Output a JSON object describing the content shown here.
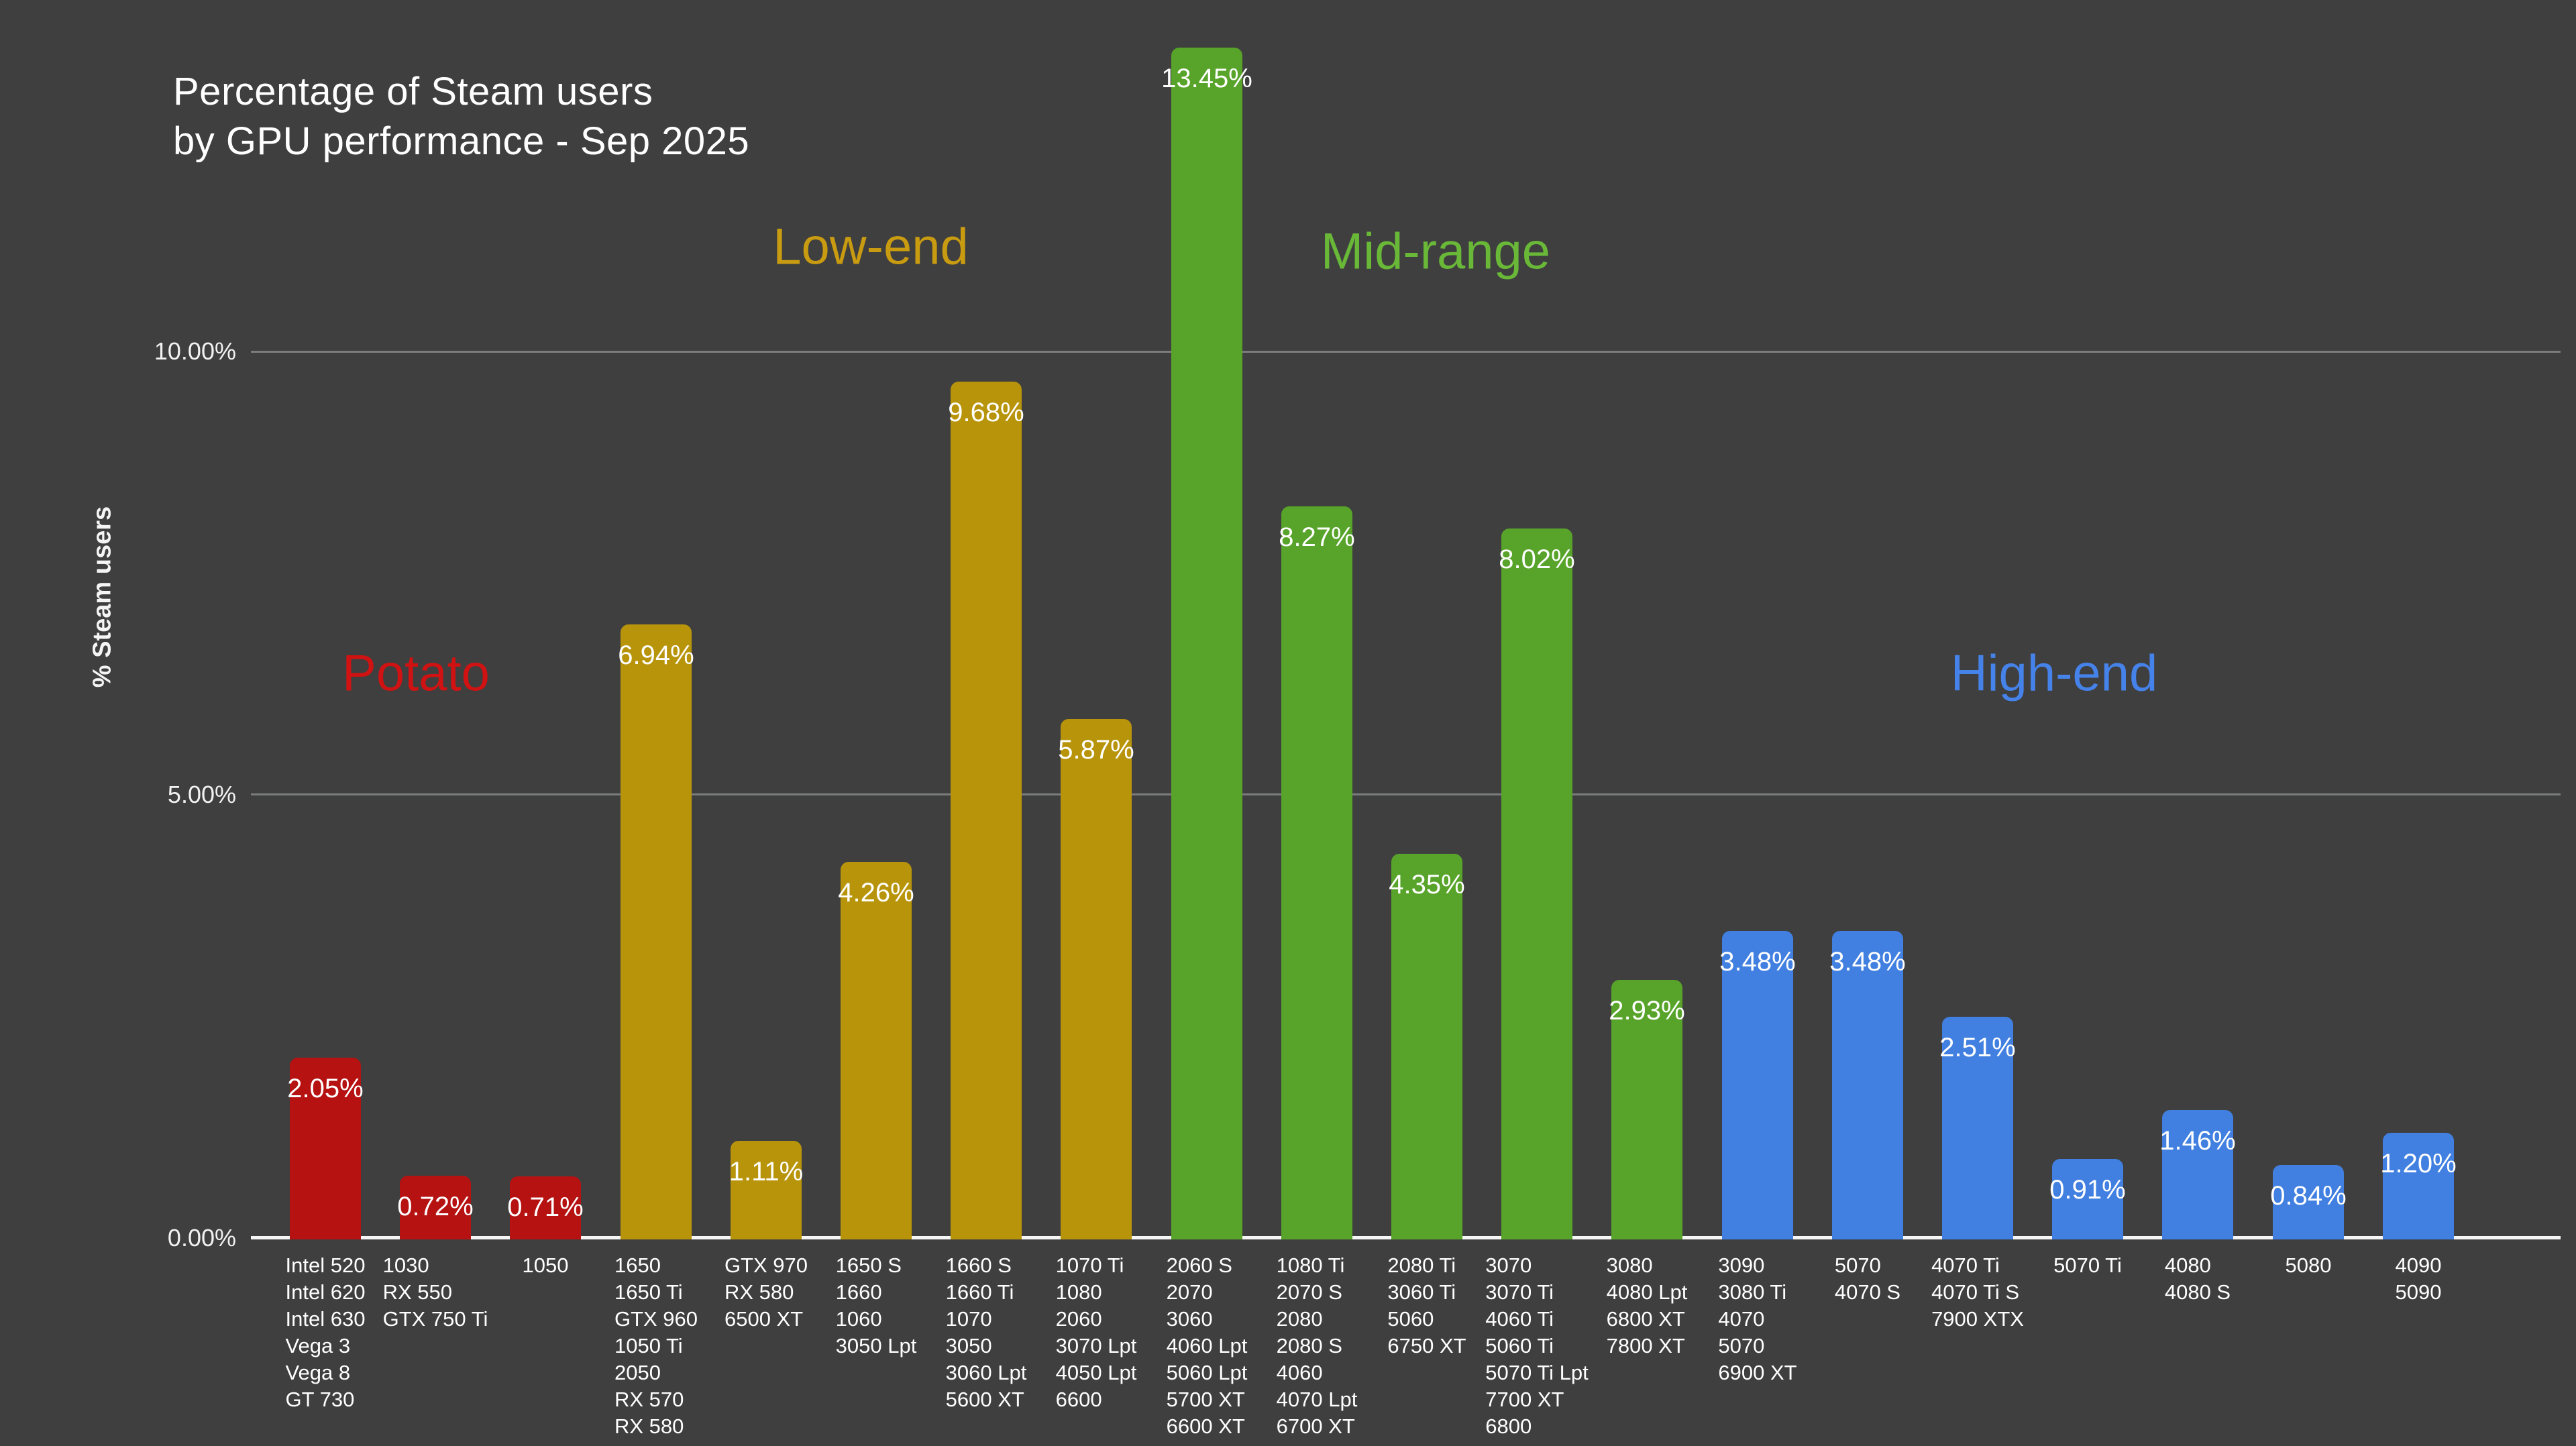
{
  "header": {
    "title_line1": "Percentage of Steam users",
    "title_line2": "by GPU performance - Sep 2025"
  },
  "chart_data": {
    "type": "bar",
    "title": "Percentage of Steam users by GPU performance - Sep 2025",
    "xlabel": "",
    "ylabel": "% Steam users",
    "ylim": [
      0,
      13.45
    ],
    "grid": "horizontal",
    "legend": "none",
    "value_suffix": "%",
    "yticks": [
      {
        "value": 0,
        "label": "0.00%"
      },
      {
        "value": 5,
        "label": "5.00%"
      },
      {
        "value": 10,
        "label": "10.00%"
      }
    ],
    "colors": {
      "background": "#3f3f3f",
      "text": "#ffffff",
      "gridline": "#7a7c7e",
      "baseline": "#f5f5f5"
    },
    "tiers": [
      {
        "id": "potato",
        "name": "Potato",
        "bar_color": "#b61212",
        "label_color": "#d11212",
        "annotation": {
          "x": 620,
          "y": 1004
        }
      },
      {
        "id": "low",
        "name": "Low-end",
        "bar_color": "#b8940b",
        "label_color": "#c99b10",
        "annotation": {
          "x": 1298,
          "y": 368
        }
      },
      {
        "id": "mid",
        "name": "Mid-range",
        "bar_color": "#58a42a",
        "label_color": "#69b838",
        "annotation": {
          "x": 2140,
          "y": 375
        }
      },
      {
        "id": "high",
        "name": "High-end",
        "bar_color": "#4180e0",
        "label_color": "#4583ea",
        "annotation": {
          "x": 3062,
          "y": 1004
        }
      }
    ],
    "bars": [
      {
        "tier": "potato",
        "value": 2.05,
        "label": "2.05%",
        "gpus": [
          "Intel 520",
          "Intel 620",
          "Intel 630",
          "Vega 3",
          "Vega 8",
          "GT 730"
        ]
      },
      {
        "tier": "potato",
        "value": 0.72,
        "label": "0.72%",
        "gpus": [
          "1030",
          "RX 550",
          "GTX 750 Ti"
        ]
      },
      {
        "tier": "potato",
        "value": 0.71,
        "label": "0.71%",
        "gpus": [
          "1050"
        ]
      },
      {
        "tier": "low",
        "value": 6.94,
        "label": "6.94%",
        "gpus": [
          "1650",
          "1650 Ti",
          "GTX 960",
          "1050 Ti",
          "2050",
          "RX 570",
          "RX 580"
        ]
      },
      {
        "tier": "low",
        "value": 1.11,
        "label": "1.11%",
        "gpus": [
          "GTX 970",
          "RX 580",
          "6500 XT"
        ]
      },
      {
        "tier": "low",
        "value": 4.26,
        "label": "4.26%",
        "gpus": [
          "1650 S",
          "1660",
          "1060",
          "3050 Lpt"
        ]
      },
      {
        "tier": "low",
        "value": 9.68,
        "label": "9.68%",
        "gpus": [
          "1660 S",
          "1660 Ti",
          "1070",
          "3050",
          "3060 Lpt",
          "5600 XT"
        ]
      },
      {
        "tier": "low",
        "value": 5.87,
        "label": "5.87%",
        "gpus": [
          "1070 Ti",
          "1080",
          "2060",
          "3070 Lpt",
          "4050 Lpt",
          "6600"
        ]
      },
      {
        "tier": "mid",
        "value": 13.45,
        "label": "13.45%",
        "gpus": [
          "2060 S",
          "2070",
          "3060",
          "4060 Lpt",
          "5060 Lpt",
          "5700 XT",
          "6600 XT"
        ]
      },
      {
        "tier": "mid",
        "value": 8.27,
        "label": "8.27%",
        "gpus": [
          "1080 Ti",
          "2070 S",
          "2080",
          "2080 S",
          "4060",
          "4070 Lpt",
          "6700 XT"
        ]
      },
      {
        "tier": "mid",
        "value": 4.35,
        "label": "4.35%",
        "gpus": [
          "2080 Ti",
          "3060 Ti",
          "5060",
          "6750 XT"
        ]
      },
      {
        "tier": "mid",
        "value": 8.02,
        "label": "8.02%",
        "gpus": [
          "3070",
          "3070 Ti",
          "4060 Ti",
          "5060 Ti",
          "5070 Ti Lpt",
          "7700 XT",
          "6800"
        ]
      },
      {
        "tier": "mid",
        "value": 2.93,
        "label": "2.93%",
        "gpus": [
          "3080",
          "4080 Lpt",
          "6800 XT",
          "7800 XT"
        ]
      },
      {
        "tier": "high",
        "value": 3.48,
        "label": "3.48%",
        "gpus": [
          "3090",
          "3080 Ti",
          "4070",
          "5070",
          "6900 XT"
        ]
      },
      {
        "tier": "high",
        "value": 3.48,
        "label": "3.48%",
        "gpus": [
          "5070",
          "4070 S"
        ]
      },
      {
        "tier": "high",
        "value": 2.51,
        "label": "2.51%",
        "gpus": [
          "4070 Ti",
          "4070 Ti S",
          "7900 XTX"
        ]
      },
      {
        "tier": "high",
        "value": 0.91,
        "label": "0.91%",
        "gpus": [
          "5070 Ti"
        ]
      },
      {
        "tier": "high",
        "value": 1.46,
        "label": "1.46%",
        "gpus": [
          "4080",
          "4080 S"
        ]
      },
      {
        "tier": "high",
        "value": 0.84,
        "label": "0.84%",
        "gpus": [
          "5080"
        ]
      },
      {
        "tier": "high",
        "value": 1.2,
        "label": "1.20%",
        "gpus": [
          "4090",
          "5090"
        ]
      }
    ]
  }
}
